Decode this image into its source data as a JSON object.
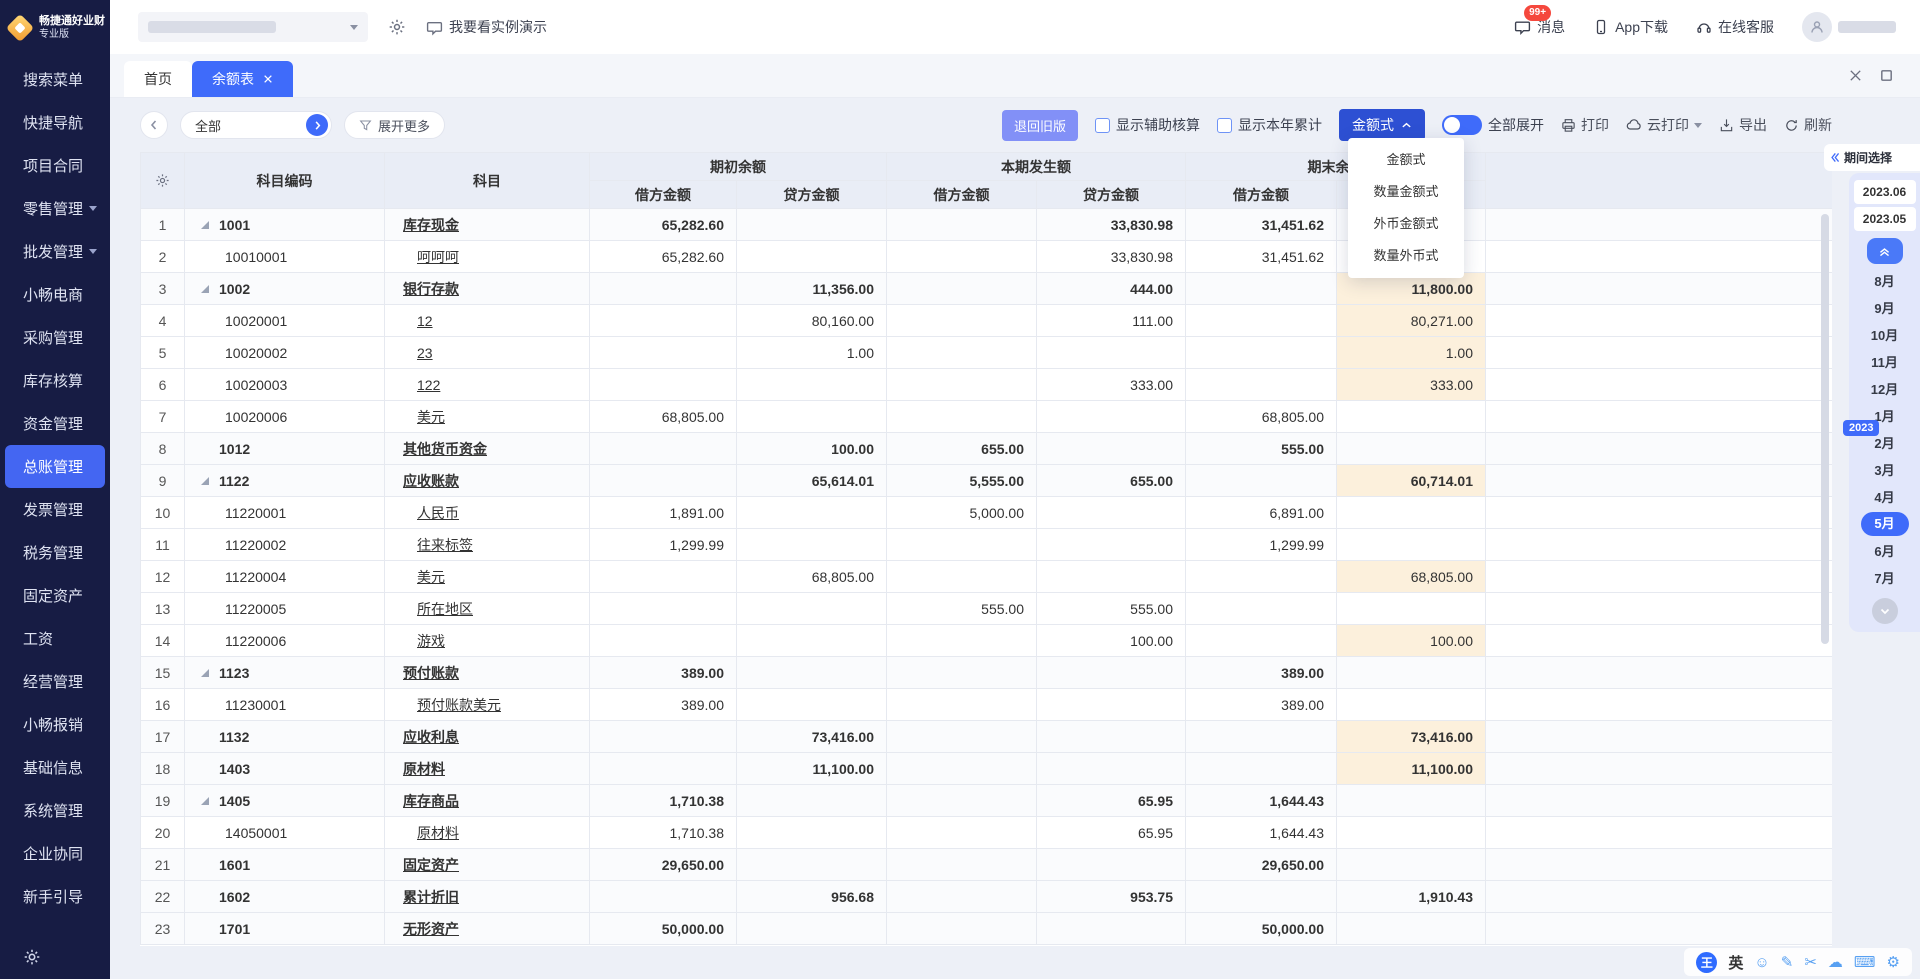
{
  "brand": {
    "name": "畅捷通好业财",
    "edition": "专业版"
  },
  "topbar": {
    "demo_text": "我要看实例演示",
    "messages_label": "消息",
    "messages_badge": "99+",
    "app_download_label": "App下载",
    "online_service_label": "在线客服"
  },
  "tabs": {
    "home": "首页",
    "active_tab": "余额表"
  },
  "sidebar": {
    "items": [
      {
        "label": "搜索菜单"
      },
      {
        "label": "快捷导航"
      },
      {
        "label": "项目合同"
      },
      {
        "label": "零售管理",
        "arrow": true
      },
      {
        "label": "批发管理",
        "arrow": true
      },
      {
        "label": "小畅电商"
      },
      {
        "label": "采购管理"
      },
      {
        "label": "库存核算"
      },
      {
        "label": "资金管理"
      },
      {
        "label": "总账管理",
        "active": true
      },
      {
        "label": "发票管理"
      },
      {
        "label": "税务管理"
      },
      {
        "label": "固定资产"
      },
      {
        "label": "工资"
      },
      {
        "label": "经营管理"
      },
      {
        "label": "小畅报销"
      },
      {
        "label": "基础信息"
      },
      {
        "label": "系统管理"
      },
      {
        "label": "企业协同"
      },
      {
        "label": "新手引导"
      }
    ]
  },
  "toolbar": {
    "scope_value": "全部",
    "expand_more_label": "展开更多",
    "back_old_label": "退回旧版",
    "show_aux_label": "显示辅助核算",
    "show_ytd_label": "显示本年累计",
    "amount_style_label": "金额式",
    "expand_all_label": "全部展开",
    "print_label": "打印",
    "cloud_print_label": "云打印",
    "export_label": "导出",
    "refresh_label": "刷新"
  },
  "style_menu": {
    "items": [
      "金额式",
      "数量金额式",
      "外币金额式",
      "数量外币式"
    ],
    "selected": "金额式"
  },
  "period_panel": {
    "title": "期间选择",
    "pinned": [
      "2023.06",
      "2023.05"
    ],
    "year_badge": "2023",
    "months": [
      "8月",
      "9月",
      "10月",
      "11月",
      "12月",
      "1月",
      "2月",
      "3月",
      "4月",
      "5月",
      "6月",
      "7月"
    ],
    "selected_month": "5月"
  },
  "ime": {
    "logo": "王",
    "lang": "英"
  },
  "table": {
    "headers": {
      "code": "科目编码",
      "subject": "科目",
      "groups": [
        "期初余额",
        "本期发生额",
        "期末余额"
      ],
      "debit": "借方金额",
      "credit": "贷方金额"
    },
    "rows": [
      {
        "no": 1,
        "code": "1001",
        "name": "库存现金",
        "parent": true,
        "tri": true,
        "v": [
          "65,282.60",
          "",
          "",
          "33,830.98",
          "31,451.62",
          ""
        ]
      },
      {
        "no": 2,
        "code": "10010001",
        "name": "呵呵呵",
        "v": [
          "65,282.60",
          "",
          "",
          "33,830.98",
          "31,451.62",
          ""
        ]
      },
      {
        "no": 3,
        "code": "1002",
        "name": "银行存款",
        "parent": true,
        "tri": true,
        "v": [
          "",
          "11,356.00",
          "",
          "444.00",
          "",
          "11,800.00"
        ],
        "hl": [
          5
        ]
      },
      {
        "no": 4,
        "code": "10020001",
        "name": "12",
        "v": [
          "",
          "80,160.00",
          "",
          "111.00",
          "",
          "80,271.00"
        ],
        "hl": [
          5
        ]
      },
      {
        "no": 5,
        "code": "10020002",
        "name": "23",
        "v": [
          "",
          "1.00",
          "",
          "",
          "",
          "1.00"
        ],
        "hl": [
          5
        ]
      },
      {
        "no": 6,
        "code": "10020003",
        "name": "122",
        "v": [
          "",
          "",
          "",
          "333.00",
          "",
          "333.00"
        ],
        "hl": [
          5
        ]
      },
      {
        "no": 7,
        "code": "10020006",
        "name": "美元",
        "v": [
          "68,805.00",
          "",
          "",
          "",
          "68,805.00",
          ""
        ]
      },
      {
        "no": 8,
        "code": "1012",
        "name": "其他货币资金",
        "parent": true,
        "v": [
          "",
          "100.00",
          "655.00",
          "",
          "555.00",
          ""
        ]
      },
      {
        "no": 9,
        "code": "1122",
        "name": "应收账款",
        "parent": true,
        "tri": true,
        "v": [
          "",
          "65,614.01",
          "5,555.00",
          "655.00",
          "",
          "60,714.01"
        ],
        "hl": [
          5
        ]
      },
      {
        "no": 10,
        "code": "11220001",
        "name": "人民币",
        "v": [
          "1,891.00",
          "",
          "5,000.00",
          "",
          "6,891.00",
          ""
        ]
      },
      {
        "no": 11,
        "code": "11220002",
        "name": "往来标签",
        "v": [
          "1,299.99",
          "",
          "",
          "",
          "1,299.99",
          ""
        ]
      },
      {
        "no": 12,
        "code": "11220004",
        "name": "美元",
        "v": [
          "",
          "68,805.00",
          "",
          "",
          "",
          "68,805.00"
        ],
        "hl": [
          5
        ]
      },
      {
        "no": 13,
        "code": "11220005",
        "name": "所在地区",
        "v": [
          "",
          "",
          "555.00",
          "555.00",
          "",
          ""
        ]
      },
      {
        "no": 14,
        "code": "11220006",
        "name": "游戏",
        "v": [
          "",
          "",
          "",
          "100.00",
          "",
          "100.00"
        ],
        "hl": [
          5
        ]
      },
      {
        "no": 15,
        "code": "1123",
        "name": "预付账款",
        "parent": true,
        "tri": true,
        "v": [
          "389.00",
          "",
          "",
          "",
          "389.00",
          ""
        ]
      },
      {
        "no": 16,
        "code": "11230001",
        "name": "预付账款美元",
        "v": [
          "389.00",
          "",
          "",
          "",
          "389.00",
          ""
        ]
      },
      {
        "no": 17,
        "code": "1132",
        "name": "应收利息",
        "parent": true,
        "v": [
          "",
          "73,416.00",
          "",
          "",
          "",
          "73,416.00"
        ],
        "hl": [
          5
        ]
      },
      {
        "no": 18,
        "code": "1403",
        "name": "原材料",
        "parent": true,
        "v": [
          "",
          "11,100.00",
          "",
          "",
          "",
          "11,100.00"
        ],
        "hl": [
          5
        ]
      },
      {
        "no": 19,
        "code": "1405",
        "name": "库存商品",
        "parent": true,
        "tri": true,
        "v": [
          "1,710.38",
          "",
          "",
          "65.95",
          "1,644.43",
          ""
        ]
      },
      {
        "no": 20,
        "code": "14050001",
        "name": "原材料",
        "v": [
          "1,710.38",
          "",
          "",
          "65.95",
          "1,644.43",
          ""
        ]
      },
      {
        "no": 21,
        "code": "1601",
        "name": "固定资产",
        "parent": true,
        "v": [
          "29,650.00",
          "",
          "",
          "",
          "29,650.00",
          ""
        ]
      },
      {
        "no": 22,
        "code": "1602",
        "name": "累计折旧",
        "parent": true,
        "v": [
          "",
          "956.68",
          "",
          "953.75",
          "",
          "1,910.43"
        ]
      },
      {
        "no": 23,
        "code": "1701",
        "name": "无形资产",
        "parent": true,
        "v": [
          "50,000.00",
          "",
          "",
          "",
          "50,000.00",
          ""
        ]
      }
    ]
  }
}
